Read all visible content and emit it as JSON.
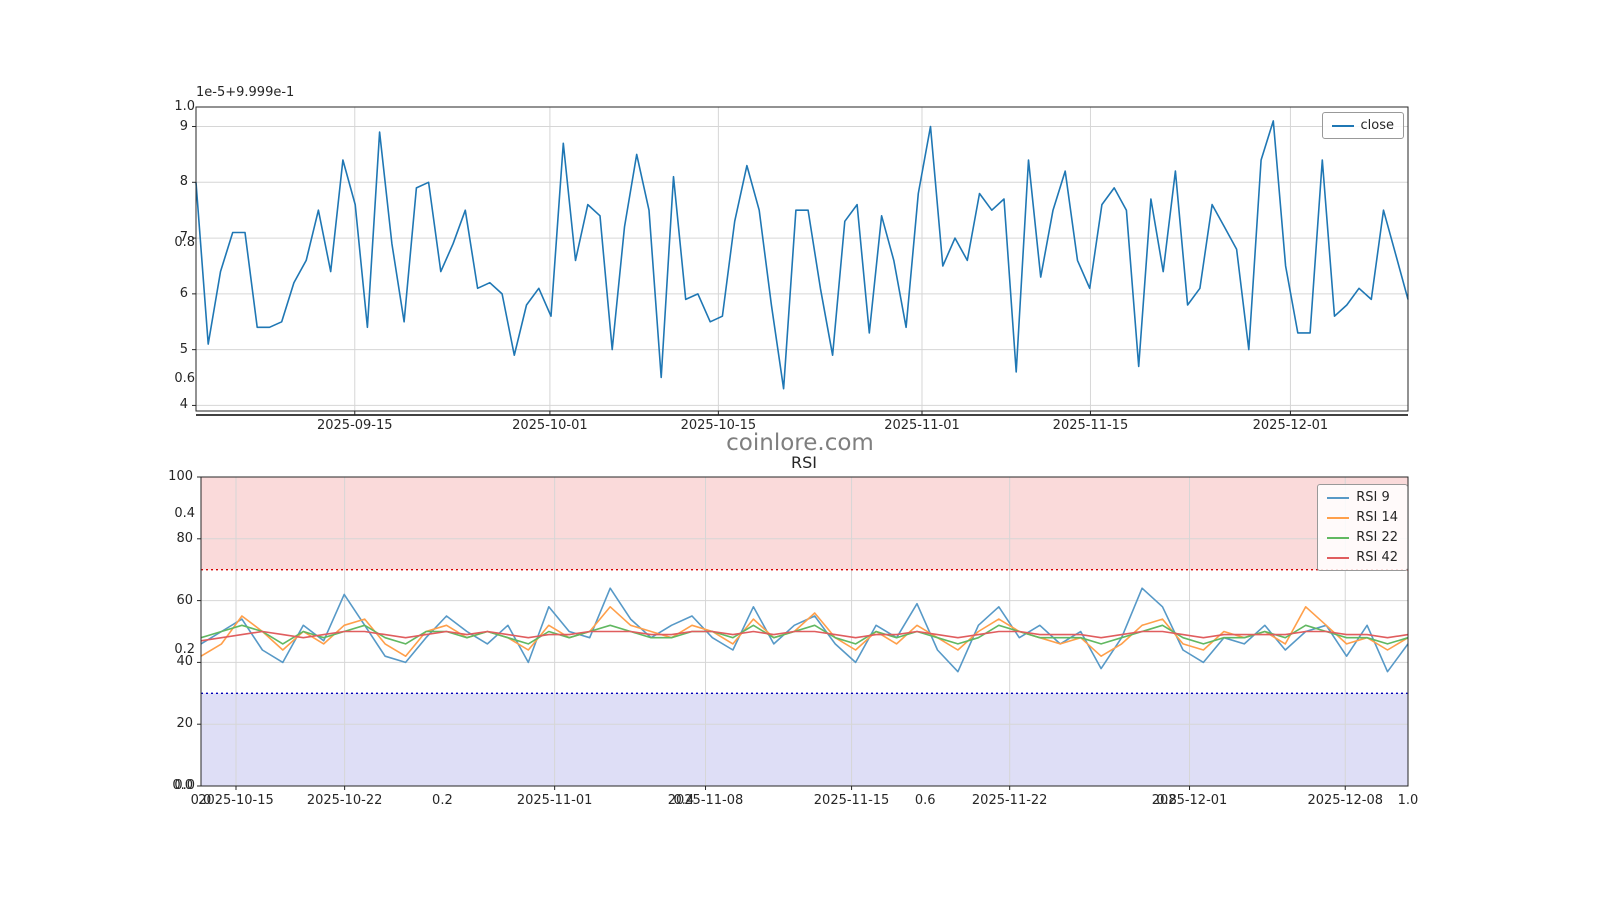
{
  "watermark": "coinlore.com",
  "overlay_axis": {
    "xtick_labels": [
      "0.0",
      "0.2",
      "0.4",
      "0.6",
      "0.8",
      "1.0"
    ],
    "ytick_labels": [
      "1.0",
      "0.8",
      "0.6",
      "0.4",
      "0.2",
      "0.0"
    ]
  },
  "chart_data": [
    {
      "type": "line",
      "title": "",
      "offset_label": "1e-5+9.999e-1",
      "ylim": [
        3.9,
        9.35
      ],
      "grid": true,
      "legend_position": "upper right",
      "legend": [
        {
          "label": "close",
          "color": "#1f77b4"
        }
      ],
      "yticks": [
        {
          "v": 4,
          "label": "4"
        },
        {
          "v": 5,
          "label": "5"
        },
        {
          "v": 6,
          "label": "6"
        },
        {
          "v": 7,
          "label": "7"
        },
        {
          "v": 8,
          "label": "8"
        },
        {
          "v": 9,
          "label": "9"
        }
      ],
      "xticks": [
        {
          "f": 0.131,
          "label": "2025-09-15"
        },
        {
          "f": 0.292,
          "label": "2025-10-01"
        },
        {
          "f": 0.431,
          "label": "2025-10-15"
        },
        {
          "f": 0.599,
          "label": "2025-11-01"
        },
        {
          "f": 0.738,
          "label": "2025-11-15"
        },
        {
          "f": 0.903,
          "label": "2025-12-01"
        }
      ],
      "series": [
        {
          "name": "close",
          "color": "#1f77b4",
          "values": [
            8.0,
            5.1,
            6.4,
            7.1,
            7.1,
            5.4,
            5.4,
            5.5,
            6.2,
            6.6,
            7.5,
            6.4,
            8.4,
            7.6,
            5.4,
            8.9,
            6.9,
            5.5,
            7.9,
            8.0,
            6.4,
            6.9,
            7.5,
            6.1,
            6.2,
            6.0,
            4.9,
            5.8,
            6.1,
            5.6,
            8.7,
            6.6,
            7.6,
            7.4,
            5.0,
            7.2,
            8.5,
            7.5,
            4.5,
            8.1,
            5.9,
            6.0,
            5.5,
            5.6,
            7.3,
            8.3,
            7.5,
            5.8,
            4.3,
            7.5,
            7.5,
            6.1,
            4.9,
            7.3,
            7.6,
            5.3,
            7.4,
            6.6,
            5.4,
            7.8,
            9.0,
            6.5,
            7.0,
            6.6,
            7.8,
            7.5,
            7.7,
            4.6,
            8.4,
            6.3,
            7.5,
            8.2,
            6.6,
            6.1,
            7.6,
            7.9,
            7.5,
            4.7,
            7.7,
            6.4,
            8.2,
            5.8,
            6.1,
            7.6,
            7.2,
            6.8,
            5.0,
            8.4,
            9.1,
            6.5,
            5.3,
            5.3,
            8.4,
            5.6,
            5.8,
            6.1,
            5.9,
            7.5,
            6.7,
            5.9
          ]
        }
      ]
    },
    {
      "type": "line",
      "title": "RSI",
      "ylim": [
        0,
        100
      ],
      "grid": true,
      "legend_position": "upper right",
      "bands": [
        {
          "from": 70,
          "to": 100,
          "color": "#fadada"
        },
        {
          "from": 0,
          "to": 30,
          "color": "#dedef6"
        }
      ],
      "hlines": [
        {
          "v": 70,
          "color": "#d40000"
        },
        {
          "v": 30,
          "color": "#0000b8"
        }
      ],
      "legend": [
        {
          "label": "RSI 9",
          "color": "#5799c7"
        },
        {
          "label": "RSI 14",
          "color": "#ff9f4a"
        },
        {
          "label": "RSI 22",
          "color": "#61b861"
        },
        {
          "label": "RSI 42",
          "color": "#e05d5e"
        }
      ],
      "yticks": [
        {
          "v": 0,
          "label": "0.0"
        },
        {
          "v": 20,
          "label": "20"
        },
        {
          "v": 40,
          "label": "40"
        },
        {
          "v": 60,
          "label": "60"
        },
        {
          "v": 80,
          "label": "80"
        },
        {
          "v": 100,
          "label": "100"
        }
      ],
      "xticks": [
        {
          "f": 0.029,
          "label": "2025-10-15"
        },
        {
          "f": 0.119,
          "label": "2025-10-22"
        },
        {
          "f": 0.293,
          "label": "2025-11-01"
        },
        {
          "f": 0.418,
          "label": "2025-11-08"
        },
        {
          "f": 0.539,
          "label": "2025-11-15"
        },
        {
          "f": 0.67,
          "label": "2025-11-22"
        },
        {
          "f": 0.819,
          "label": "2025-12-01"
        },
        {
          "f": 0.948,
          "label": "2025-12-08"
        }
      ],
      "series": [
        {
          "name": "RSI 9",
          "color": "#5799c7",
          "values": [
            46,
            50,
            54,
            44,
            40,
            52,
            47,
            62,
            52,
            42,
            40,
            48,
            55,
            50,
            46,
            52,
            40,
            58,
            50,
            48,
            64,
            54,
            48,
            52,
            55,
            48,
            44,
            58,
            46,
            52,
            55,
            46,
            40,
            52,
            48,
            59,
            44,
            37,
            52,
            58,
            48,
            52,
            46,
            50,
            38,
            48,
            64,
            58,
            44,
            40,
            48,
            46,
            52,
            44,
            50,
            52,
            42,
            52,
            37,
            46
          ]
        },
        {
          "name": "RSI 14",
          "color": "#ff9f4a",
          "values": [
            42,
            46,
            55,
            50,
            44,
            50,
            46,
            52,
            54,
            46,
            42,
            50,
            52,
            48,
            50,
            48,
            44,
            52,
            48,
            50,
            58,
            52,
            50,
            48,
            52,
            50,
            46,
            54,
            48,
            50,
            56,
            48,
            44,
            50,
            46,
            52,
            48,
            44,
            50,
            54,
            50,
            48,
            46,
            48,
            42,
            46,
            52,
            54,
            46,
            44,
            50,
            48,
            50,
            46,
            58,
            52,
            46,
            48,
            44,
            48
          ]
        },
        {
          "name": "RSI 22",
          "color": "#61b861",
          "values": [
            48,
            50,
            52,
            50,
            46,
            50,
            48,
            50,
            52,
            48,
            46,
            50,
            50,
            48,
            50,
            48,
            46,
            50,
            48,
            50,
            52,
            50,
            48,
            48,
            50,
            50,
            48,
            52,
            48,
            50,
            52,
            48,
            46,
            50,
            48,
            50,
            48,
            46,
            48,
            52,
            50,
            48,
            48,
            48,
            46,
            48,
            50,
            52,
            48,
            46,
            48,
            48,
            50,
            48,
            52,
            50,
            48,
            48,
            46,
            48
          ]
        },
        {
          "name": "RSI 42",
          "color": "#e05d5e",
          "values": [
            47,
            48,
            49,
            50,
            49,
            48,
            49,
            50,
            50,
            49,
            48,
            49,
            50,
            49,
            50,
            49,
            48,
            49,
            49,
            50,
            50,
            50,
            49,
            49,
            50,
            50,
            49,
            50,
            49,
            50,
            50,
            49,
            48,
            49,
            49,
            50,
            49,
            48,
            49,
            50,
            50,
            49,
            49,
            49,
            48,
            49,
            50,
            50,
            49,
            48,
            49,
            49,
            49,
            49,
            50,
            50,
            49,
            49,
            48,
            49
          ]
        }
      ]
    }
  ]
}
